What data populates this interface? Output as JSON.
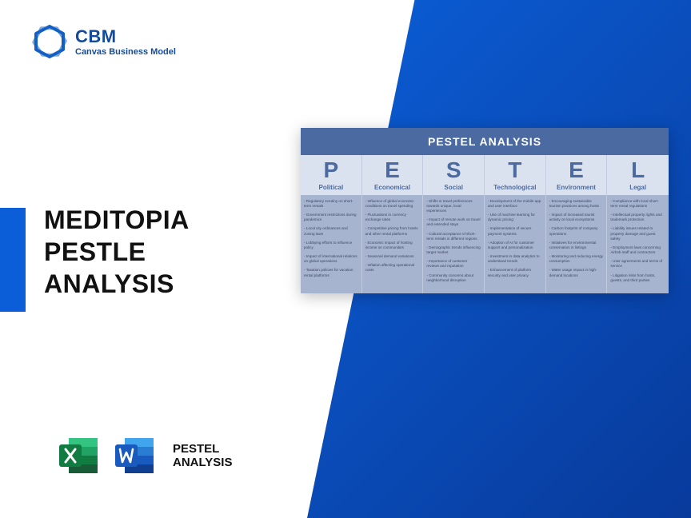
{
  "logo": {
    "title": "CBM",
    "subtitle": "Canvas Business Model",
    "color": "#134b9a"
  },
  "accent_color": "#0b5ed7",
  "gradient": {
    "from": "#0b5ed7",
    "to": "#083a9b"
  },
  "main_title": {
    "line1": "MEDITOPIA",
    "line2": "PESTLE",
    "line3": "ANALYSIS"
  },
  "bottom": {
    "label_line1": "PESTEL",
    "label_line2": "ANALYSIS",
    "excel_color_dark": "#107c41",
    "excel_color_light": "#21a366",
    "word_color_dark": "#103f91",
    "word_color_light": "#2b7cd3"
  },
  "pestel": {
    "title": "PESTEL ANALYSIS",
    "header_bg": "#4b6aa1",
    "cell_bg": "#dbe2ef",
    "body_bg": "#a7b4d0",
    "text_color": "#3b4763",
    "columns": [
      {
        "letter": "P",
        "category": "Political",
        "items": [
          "- Regulatory scrutiny on short-term rentals",
          "- Government restrictions during pandemics",
          "- Local city ordinances and zoning laws",
          "- Lobbying efforts to influence policy",
          "- Impact of international relations on global operations",
          "- Taxation policies for vacation rental platforms"
        ]
      },
      {
        "letter": "E",
        "category": "Economical",
        "items": [
          "- Influence of global economic conditions on travel spending",
          "- Fluctuations in currency exchange rates",
          "- Competitive pricing from hotels and other rental platforms",
          "- Economic impact of hosting income on communities",
          "- Seasonal demand variations",
          "- Inflation affecting operational costs"
        ]
      },
      {
        "letter": "S",
        "category": "Social",
        "items": [
          "- Shifts in travel preferences towards unique, local experiences",
          "- Impact of remote work on travel and extended stays",
          "- Cultural acceptance of short-term rentals in different regions",
          "- Demographic trends influencing target market",
          "- Importance of customer reviews and reputation",
          "- Community concerns about neighborhood disruption"
        ]
      },
      {
        "letter": "T",
        "category": "Technological",
        "items": [
          "- Development of the mobile app and user interface",
          "- Use of machine learning for dynamic pricing",
          "- Implementation of secure payment systems",
          "- Adoption of AI for customer support and personalization",
          "- Investment in data analytics to understand trends",
          "- Enhancement of platform security and user privacy"
        ]
      },
      {
        "letter": "E",
        "category": "Environment",
        "items": [
          "- Encouraging sustainable tourism practices among hosts",
          "- Impact of increased tourist activity on local ecosystems",
          "- Carbon footprint of company operations",
          "- Initiatives for environmental conservation in listings",
          "- Monitoring and reducing energy consumption",
          "- Water usage impact in high-demand locations"
        ]
      },
      {
        "letter": "L",
        "category": "Legal",
        "items": [
          "- Compliance with local short-term rental regulations",
          "- Intellectual property rights and trademark protection",
          "- Liability issues related to property damage and guest safety",
          "- Employment laws concerning Airbnb staff and contractors",
          "- User agreements and terms of service",
          "- Litigation risks from hosts, guests, and third parties"
        ]
      }
    ]
  }
}
